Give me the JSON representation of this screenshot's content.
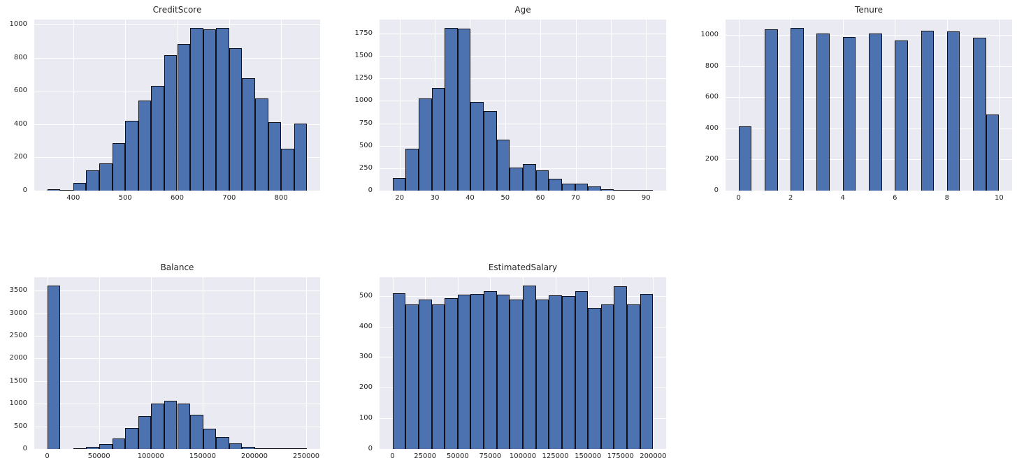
{
  "figure": {
    "background": "#ffffff",
    "axes_background": "#eaeaf2",
    "grid_color": "#ffffff",
    "bar_fill": "#4c72b0",
    "bar_edge": "#10101a",
    "text_color": "#262626"
  },
  "chart_data": [
    {
      "type": "bar",
      "subtype": "histogram",
      "title": "CreditScore",
      "bin_start": 350,
      "bin_width": 25,
      "values": [
        10,
        2,
        45,
        120,
        165,
        285,
        420,
        540,
        630,
        815,
        880,
        980,
        970,
        980,
        855,
        675,
        555,
        410,
        253,
        405
      ],
      "xlim": [
        325,
        875
      ],
      "ylim": [
        0,
        1029
      ],
      "xticks": [
        400,
        500,
        600,
        700,
        800
      ],
      "yticks": [
        0,
        200,
        400,
        600,
        800,
        1000
      ],
      "grid": true,
      "legend": false
    },
    {
      "type": "bar",
      "subtype": "histogram",
      "title": "Age",
      "bin_start": 18,
      "bin_width": 3.7,
      "values": [
        140,
        470,
        1030,
        1145,
        1815,
        1805,
        990,
        885,
        570,
        255,
        295,
        225,
        130,
        80,
        80,
        48,
        12,
        6,
        2,
        2
      ],
      "xlim": [
        14.3,
        95.7
      ],
      "ylim": [
        0,
        1906
      ],
      "xticks": [
        20,
        30,
        40,
        50,
        60,
        70,
        80,
        90
      ],
      "yticks": [
        0,
        250,
        500,
        750,
        1000,
        1250,
        1500,
        1750
      ],
      "grid": true,
      "legend": false
    },
    {
      "type": "bar",
      "subtype": "histogram",
      "title": "Tenure",
      "bin_start": 0,
      "bin_width": 0.5,
      "values": [
        413,
        0,
        1035,
        0,
        1048,
        0,
        1009,
        0,
        989,
        0,
        1012,
        0,
        967,
        0,
        1028,
        0,
        1025,
        0,
        984,
        490
      ],
      "xlim": [
        -0.5,
        10.5
      ],
      "ylim": [
        0,
        1100
      ],
      "xticks": [
        0,
        2,
        4,
        6,
        8,
        10
      ],
      "yticks": [
        0,
        200,
        400,
        600,
        800,
        1000
      ],
      "grid": true,
      "legend": false
    },
    {
      "type": "bar",
      "subtype": "histogram",
      "title": "Balance",
      "bin_start": 0,
      "bin_width": 12544.9,
      "values": [
        3617,
        0,
        12,
        48,
        110,
        235,
        460,
        720,
        1000,
        1070,
        1000,
        755,
        445,
        265,
        125,
        40,
        22,
        6,
        2,
        1
      ],
      "xlim": [
        -12545,
        263443
      ],
      "ylim": [
        0,
        3798
      ],
      "xticks": [
        0,
        50000,
        100000,
        150000,
        200000,
        250000
      ],
      "yticks": [
        0,
        500,
        1000,
        1500,
        2000,
        2500,
        3000,
        3500
      ],
      "grid": true,
      "legend": false
    },
    {
      "type": "bar",
      "subtype": "histogram",
      "title": "EstimatedSalary",
      "bin_start": 11.58,
      "bin_width": 9999.05,
      "values": [
        509,
        472,
        489,
        473,
        493,
        505,
        507,
        516,
        505,
        489,
        534,
        489,
        502,
        500,
        516,
        461,
        473,
        532,
        473,
        507
      ],
      "xlim": [
        -9987,
        209992
      ],
      "ylim": [
        0,
        561
      ],
      "xticks": [
        0,
        25000,
        50000,
        75000,
        100000,
        125000,
        150000,
        175000,
        200000
      ],
      "yticks": [
        0,
        100,
        200,
        300,
        400,
        500
      ],
      "grid": true,
      "legend": false
    }
  ]
}
